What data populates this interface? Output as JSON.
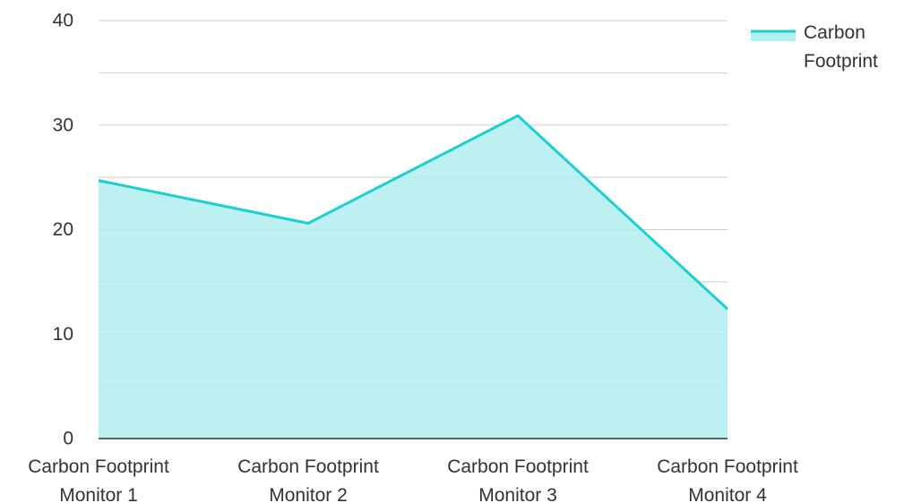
{
  "chart_data": {
    "type": "area",
    "categories": [
      [
        "Carbon Footprint",
        "Monitor 1"
      ],
      [
        "Carbon Footprint",
        "Monitor 2"
      ],
      [
        "Carbon Footprint",
        "Monitor 3"
      ],
      [
        "Carbon Footprint",
        "Monitor 4"
      ]
    ],
    "series": [
      {
        "name": [
          "Carbon",
          "Footprint"
        ],
        "values": [
          24.7,
          20.6,
          30.9,
          12.4
        ],
        "line_color": "#1ccfd0",
        "fill_color": "#b2efee"
      }
    ],
    "yticks": [
      "0",
      "10",
      "20",
      "30",
      "40"
    ],
    "ylim": [
      0,
      40
    ],
    "minor_step": 5,
    "grid": true,
    "legend_position": "top-right",
    "grid_color": "#cccccc",
    "axis_color": "#333333"
  }
}
